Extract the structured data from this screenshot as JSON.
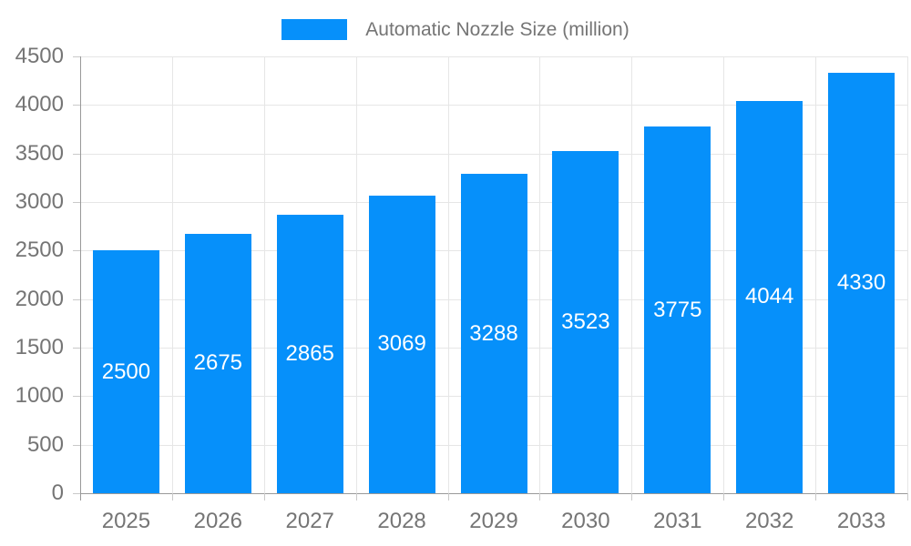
{
  "legend": {
    "label": "Automatic Nozzle Size (million)"
  },
  "colors": {
    "bar": "#0690fa",
    "grid": "#e6e6e6",
    "tick": "#c9c9c9",
    "axis": "#999999",
    "text": "#757575",
    "value_text": "#ffffff",
    "background": "#ffffff"
  },
  "chart_data": {
    "type": "bar",
    "title": "Automatic Nozzle Size (million)",
    "categories": [
      "2025",
      "2026",
      "2027",
      "2028",
      "2029",
      "2030",
      "2031",
      "2032",
      "2033"
    ],
    "values": [
      2500,
      2675,
      2865,
      3069,
      3288,
      3523,
      3775,
      4044,
      4330
    ],
    "xlabel": "",
    "ylabel": "",
    "ylim": [
      0,
      4500
    ],
    "yticks": [
      0,
      500,
      1000,
      1500,
      2000,
      2500,
      3000,
      3500,
      4000,
      4500
    ],
    "grid": true,
    "legend_position": "top-center",
    "value_labels_position": "inside-center"
  }
}
